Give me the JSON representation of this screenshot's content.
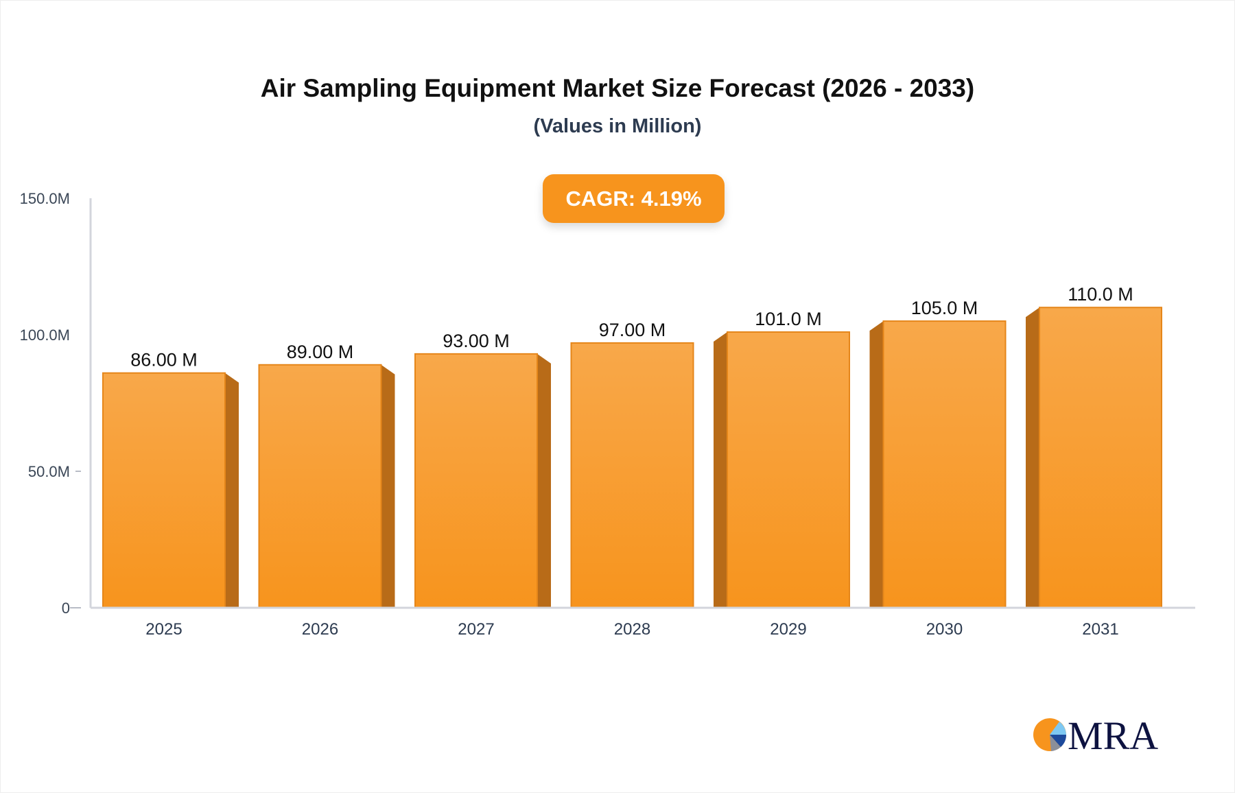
{
  "chart_data": {
    "type": "bar",
    "title": "Air Sampling Equipment Market Size Forecast (2026 - 2033)",
    "subtitle": "(Values in Million)",
    "categories": [
      "2025",
      "2026",
      "2027",
      "2028",
      "2029",
      "2030",
      "2031"
    ],
    "values": [
      86.0,
      89.0,
      93.0,
      97.0,
      101.0,
      105.0,
      110.0
    ],
    "data_labels": [
      "86.00 M",
      "89.00 M",
      "93.00 M",
      "97.00 M",
      "101.0 M",
      "105.0 M",
      "110.0 M"
    ],
    "y_ticks": [
      0,
      50,
      100,
      150
    ],
    "y_tick_labels": [
      "0",
      "50.0M",
      "100.0M",
      "150.0M"
    ],
    "ylim": [
      0,
      150
    ],
    "xlabel": "",
    "ylabel": "",
    "grid": false,
    "bar_color": "#f7941d",
    "bar_side_color": "#b86b18"
  },
  "badge": {
    "label": "CAGR: 4.19%",
    "color": "#f7941d"
  },
  "logo": {
    "text": "MRA",
    "text_color": "#0d1240"
  }
}
